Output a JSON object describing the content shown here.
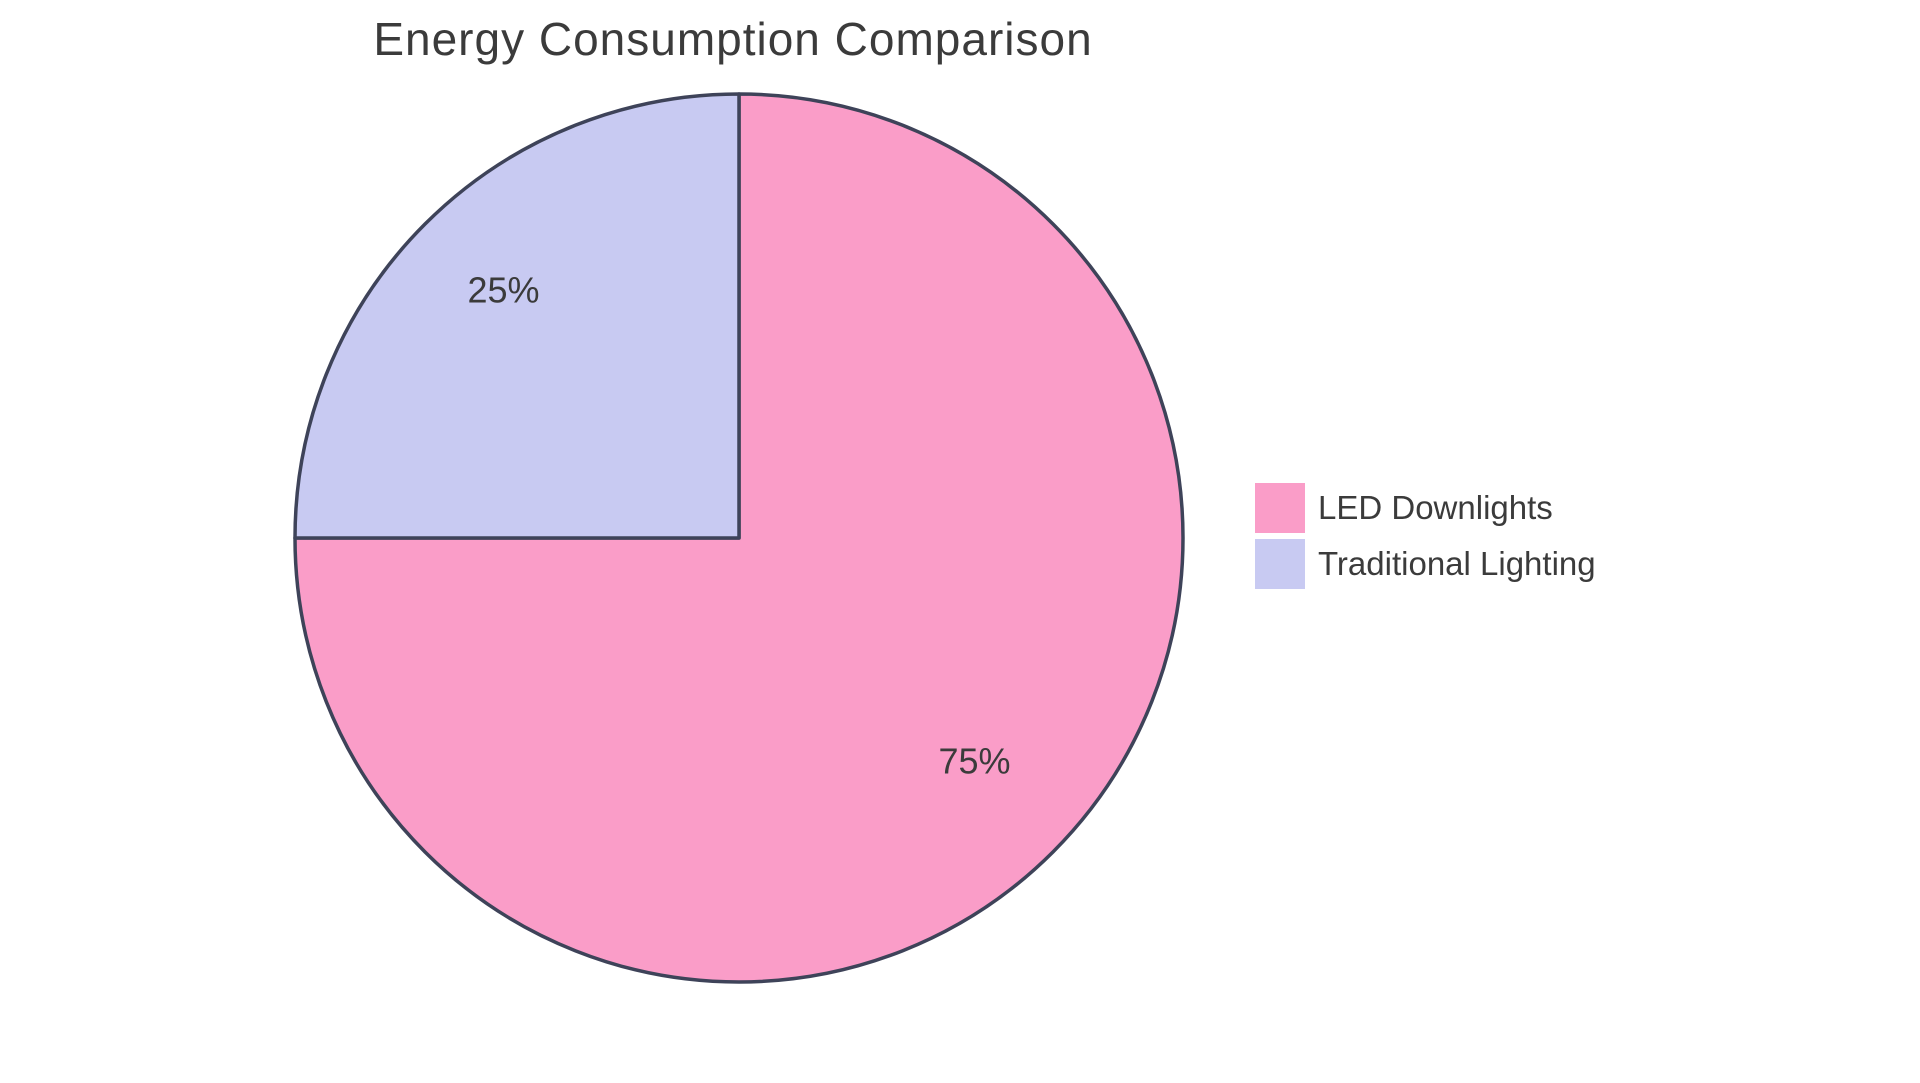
{
  "chart_data": {
    "type": "pie",
    "title": "Energy Consumption Comparison",
    "slices": [
      {
        "label": "LED Downlights",
        "value": 75,
        "pct_label": "75%",
        "color": "#FA9DC8"
      },
      {
        "label": "Traditional Lighting",
        "value": 25,
        "pct_label": "25%",
        "color": "#C8CAF2"
      }
    ],
    "start_angle_deg": 0,
    "direction": "clockwise",
    "legend_position": "right",
    "labels_shown_on_slices": true
  },
  "colors": {
    "background": "#ffffff",
    "slice_border": "#3E4359",
    "slice_label_text": "#3b3b3b",
    "title_text": "#3b3b3b",
    "legend_text": "#3b3b3b"
  }
}
